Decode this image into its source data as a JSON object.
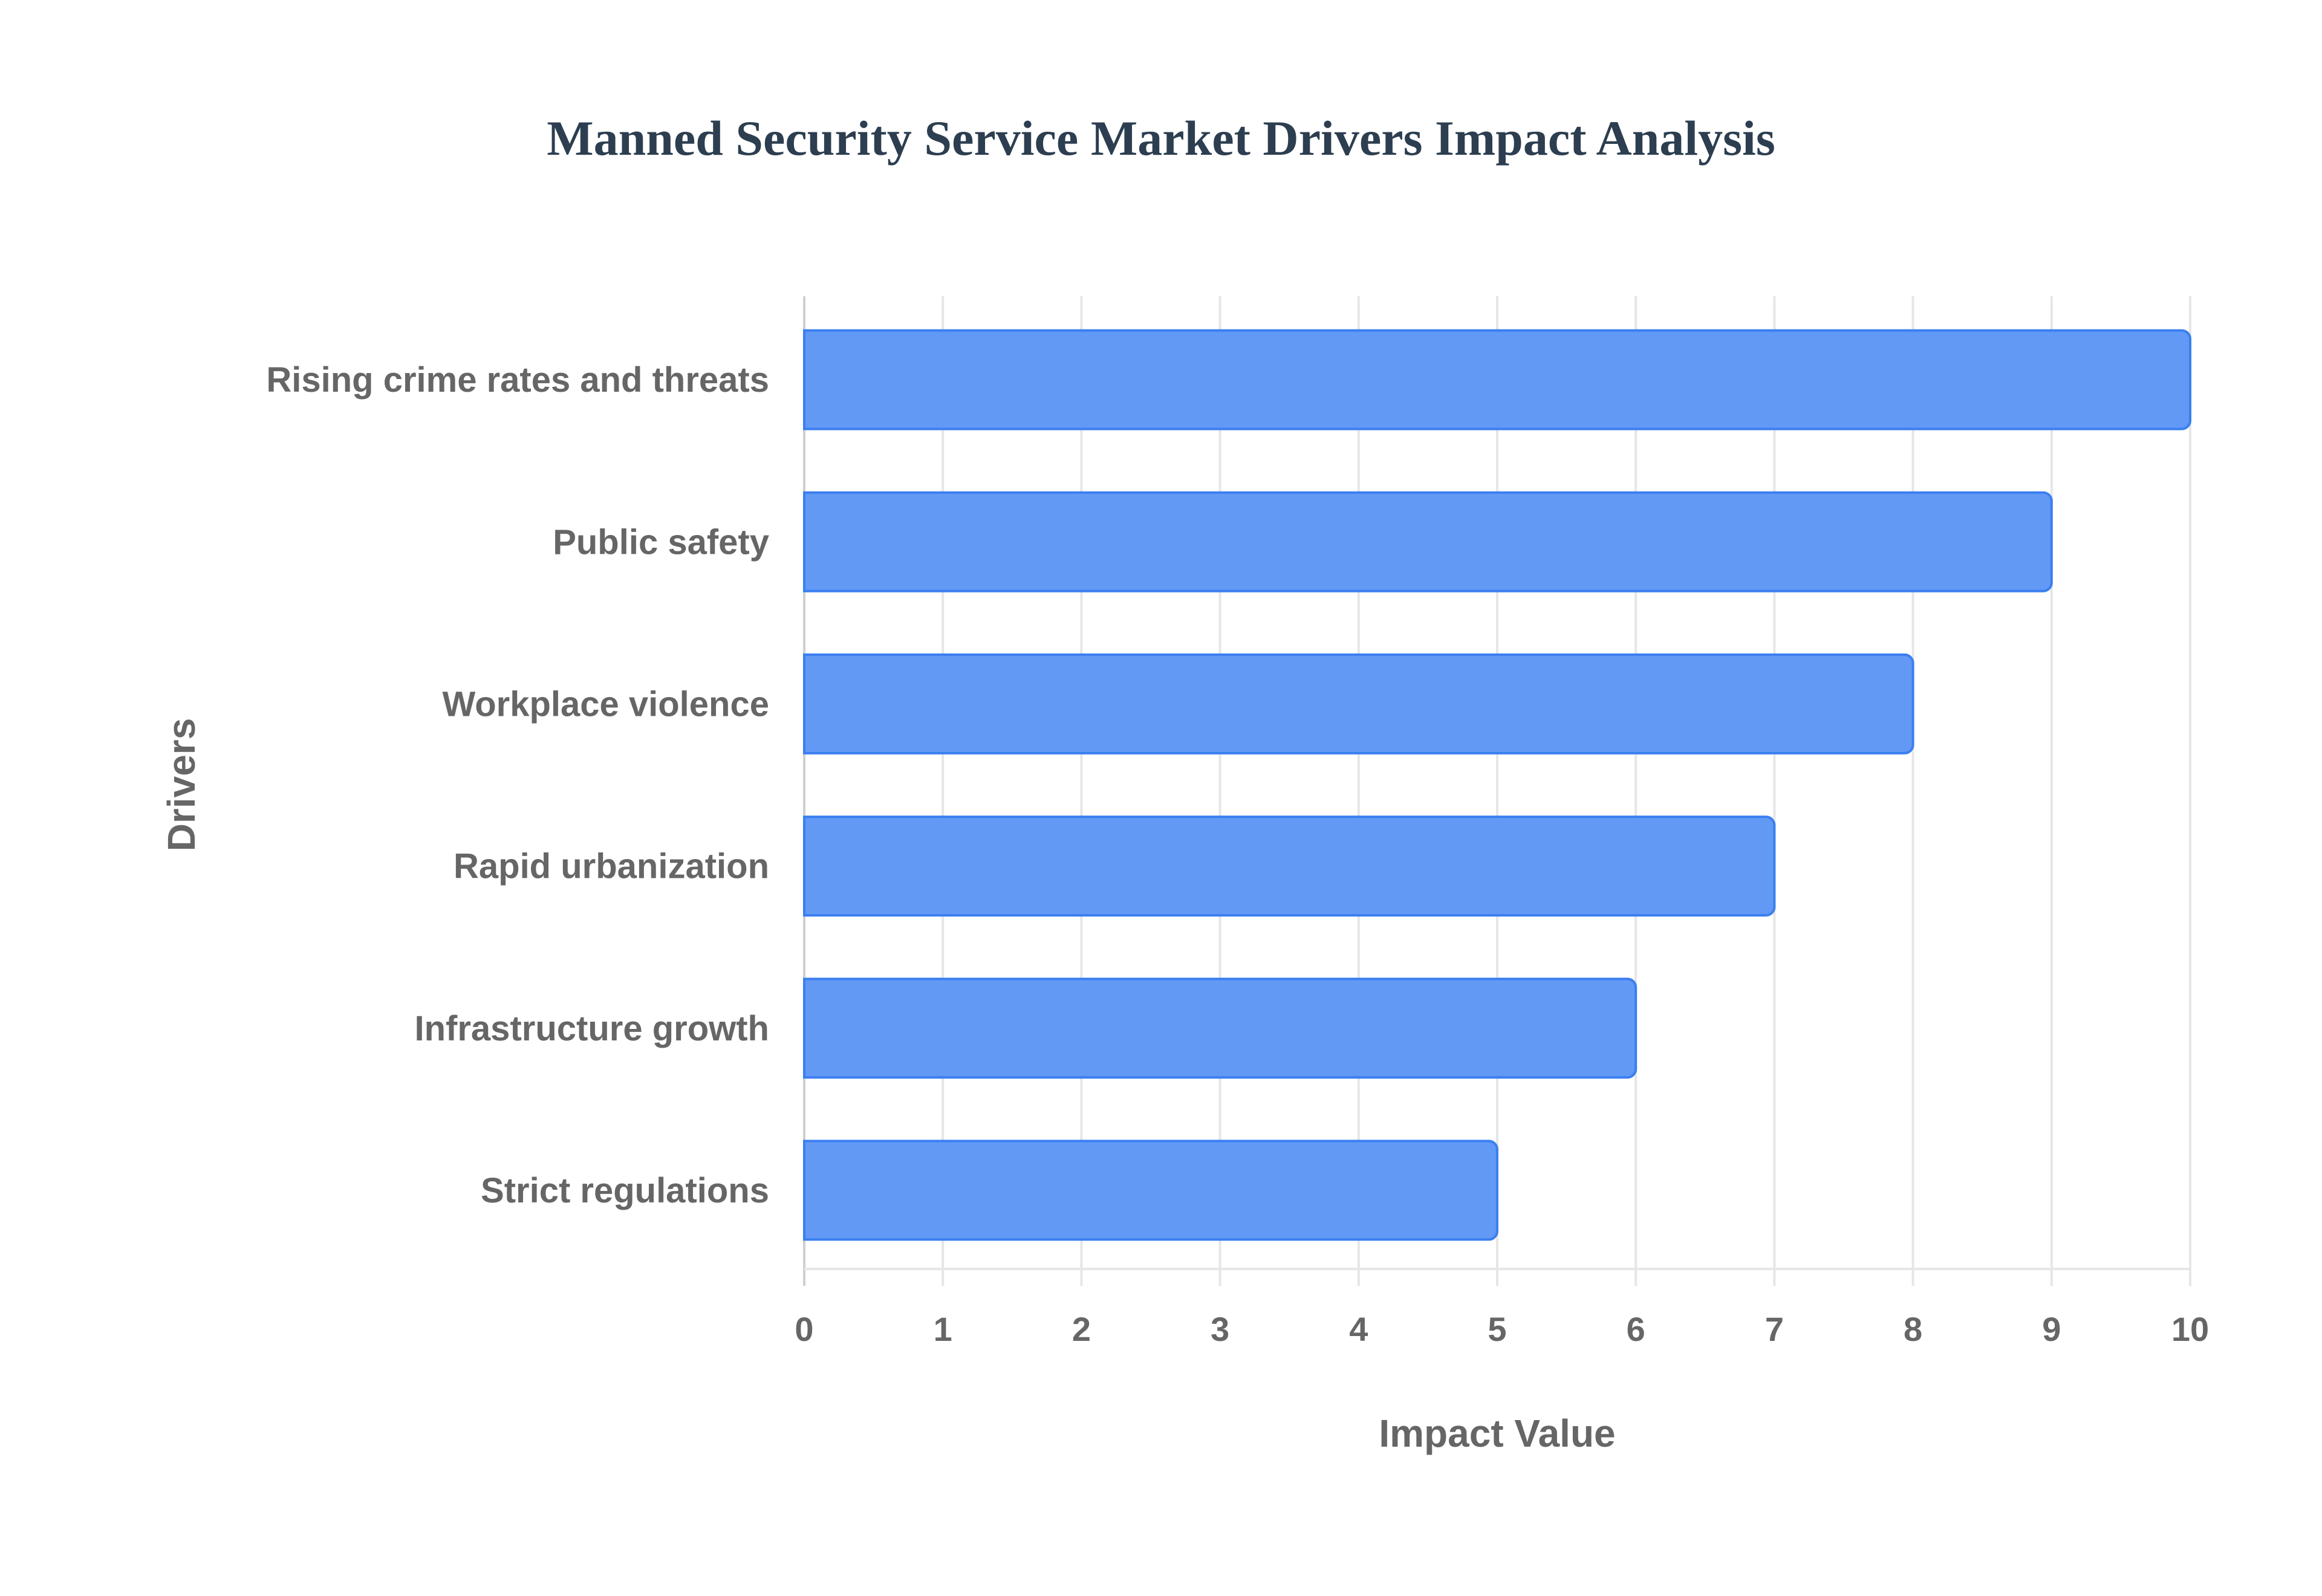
{
  "chart_data": {
    "type": "bar",
    "orientation": "horizontal",
    "title": "Manned Security Service Market Drivers Impact Analysis",
    "xlabel": "Impact Value",
    "ylabel": "Drivers",
    "categories": [
      "Rising crime rates and threats",
      "Public safety",
      "Workplace violence",
      "Rapid urbanization",
      "Infrastructure growth",
      "Strict regulations"
    ],
    "values": [
      10,
      9,
      8,
      7,
      6,
      5
    ],
    "xlim": [
      0,
      10
    ],
    "xticks": [
      "0",
      "1",
      "2",
      "3",
      "4",
      "5",
      "6",
      "7",
      "8",
      "9",
      "10"
    ],
    "grid": true,
    "legend": "none",
    "colors": {
      "bar_fill": "#6299f5",
      "bar_stroke": "#3b7ff0",
      "grid": "#e6e6e6",
      "text": "#666666",
      "title": "#2c3e50"
    }
  }
}
